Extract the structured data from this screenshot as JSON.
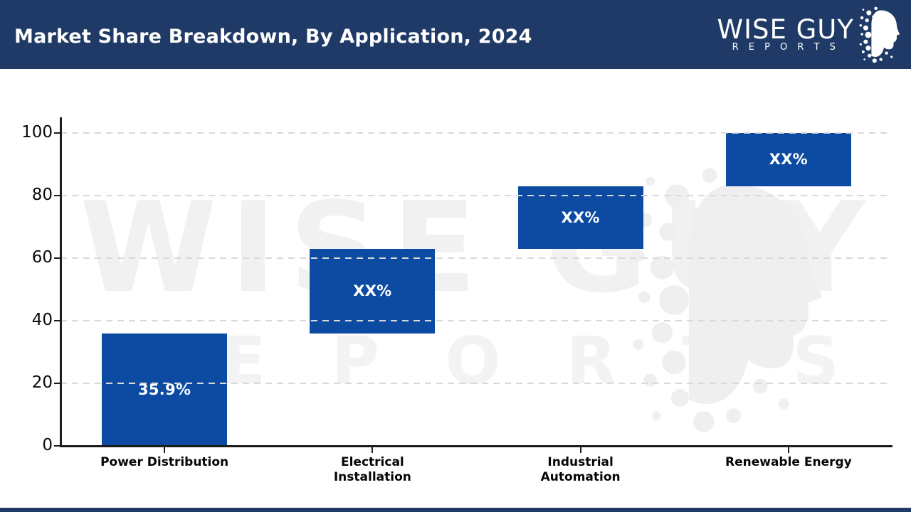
{
  "header": {
    "title": "Market Share Breakdown, By Application, 2024",
    "logo": {
      "wordmark": "WISE GUY",
      "subtext": "R E P O R T S"
    }
  },
  "watermark": {
    "wordmark": "WISE GUY",
    "subtext": "R E P O R T S"
  },
  "colors": {
    "header_bg": "#1f3a66",
    "bar_fill": "#0c4ba1",
    "bar_label": "#ffffff",
    "axis": "#1c1c1c",
    "grid": "#d9d9d9",
    "watermark": "#f1f1f1",
    "footer_bg": "#1f3a66"
  },
  "chart_data": {
    "type": "bar",
    "variant": "floating stacked segments (waterfall-style market share)",
    "title": "Market Share Breakdown, By Application, 2024",
    "categories": [
      "Power Distribution",
      "Electrical Installation",
      "Industrial Automation",
      "Renewable Energy"
    ],
    "category_label_lines": [
      [
        "Power Distribution"
      ],
      [
        "Electrical",
        "Installation"
      ],
      [
        "Industrial",
        "Automation"
      ],
      [
        "Renewable Energy"
      ]
    ],
    "bars": [
      {
        "category": "Power Distribution",
        "from": 0,
        "to": 35.9,
        "label": "35.9%"
      },
      {
        "category": "Electrical Installation",
        "from": 35.9,
        "to": 63,
        "label": "XX%"
      },
      {
        "category": "Industrial Automation",
        "from": 63,
        "to": 83,
        "label": "XX%"
      },
      {
        "category": "Renewable Energy",
        "from": 83,
        "to": 100,
        "label": "XX%"
      }
    ],
    "ylim": [
      0,
      100
    ],
    "yticks": [
      0,
      20,
      40,
      60,
      80,
      100
    ],
    "grid": {
      "horizontal": true,
      "style": "dashed"
    },
    "legend": "none",
    "xlabel": "",
    "ylabel": ""
  }
}
